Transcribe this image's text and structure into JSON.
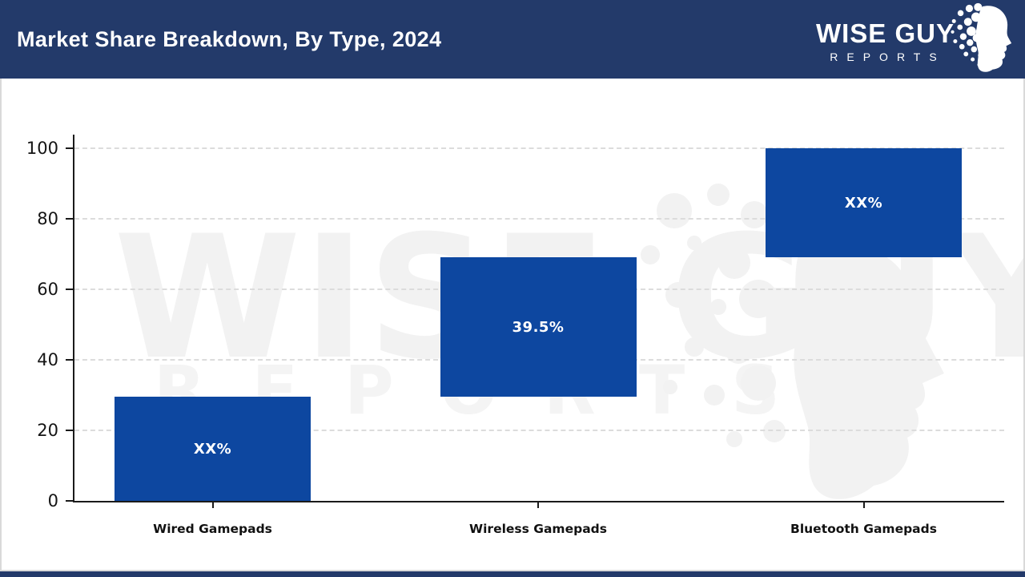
{
  "header": {
    "title": "Market Share Breakdown, By Type, 2024",
    "logo": {
      "name": "WISE GUY",
      "sub": "REPORTS"
    }
  },
  "watermark": {
    "line1": "WISE GUY",
    "line2": "REPORTS"
  },
  "colors": {
    "header_bg": "#233a6a",
    "footer_bg": "#233a6a",
    "bar": "#0d47a0",
    "grid": "#dcdcdc",
    "bar_label": "#ffffff",
    "watermark": "#f2f2f2"
  },
  "chart_data": {
    "type": "bar",
    "subtype": "floating-segment-bars (segments stack to 100%)",
    "title": "Market Share Breakdown, By Type, 2024",
    "categories": [
      "Wired Gamepads",
      "Wireless Gamepads",
      "Bluetooth Gamepads"
    ],
    "bars": [
      {
        "category": "Wired Gamepads",
        "start": 0,
        "end": 29.5,
        "value_label": "XX%"
      },
      {
        "category": "Wireless Gamepads",
        "start": 29.5,
        "end": 69,
        "value_label": "39.5%"
      },
      {
        "category": "Bluetooth Gamepads",
        "start": 69,
        "end": 100,
        "value_label": "XX%"
      }
    ],
    "xlabel": "",
    "ylabel": "",
    "ylim": [
      0,
      100
    ],
    "yticks": [
      0,
      20,
      40,
      60,
      80,
      100
    ],
    "grid": "horizontal dashed",
    "legend": "none"
  }
}
